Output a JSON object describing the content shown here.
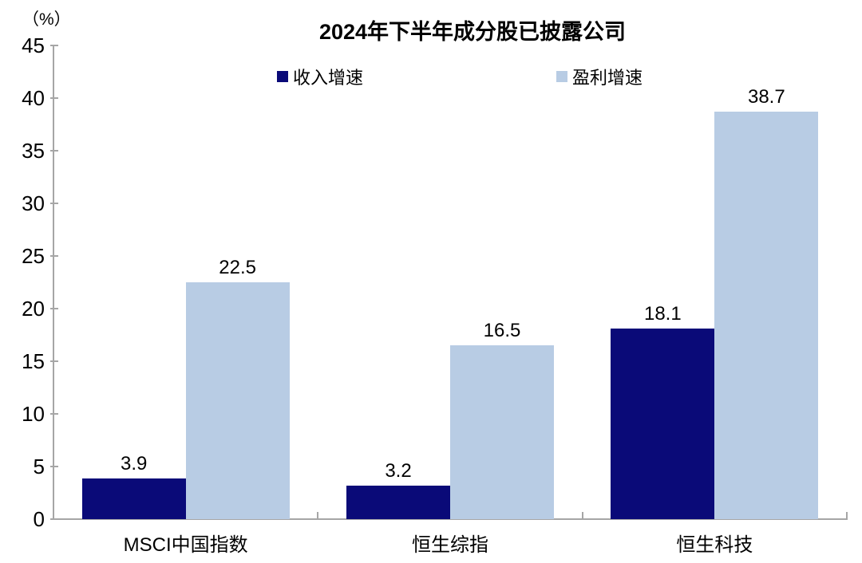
{
  "chart_data": {
    "type": "bar",
    "title": "2024年下半年成分股已披露公司",
    "unit_label": "（%）",
    "categories": [
      "MSCI中国指数",
      "恒生综指",
      "恒生科技"
    ],
    "series": [
      {
        "name": "收入增速",
        "color": "#0a0a78",
        "values": [
          3.9,
          3.2,
          18.1
        ]
      },
      {
        "name": "盈利增速",
        "color": "#b8cce4",
        "values": [
          22.5,
          16.5,
          38.7
        ]
      }
    ],
    "data_labels": [
      [
        "3.9",
        "3.2",
        "18.1"
      ],
      [
        "22.5",
        "16.5",
        "38.7"
      ]
    ],
    "ylim": [
      0,
      45
    ],
    "yticks": [
      0,
      5,
      10,
      15,
      20,
      25,
      30,
      35,
      40,
      45
    ],
    "grid": false,
    "legend_position": "top",
    "axis_color": "#a6a6a6"
  }
}
